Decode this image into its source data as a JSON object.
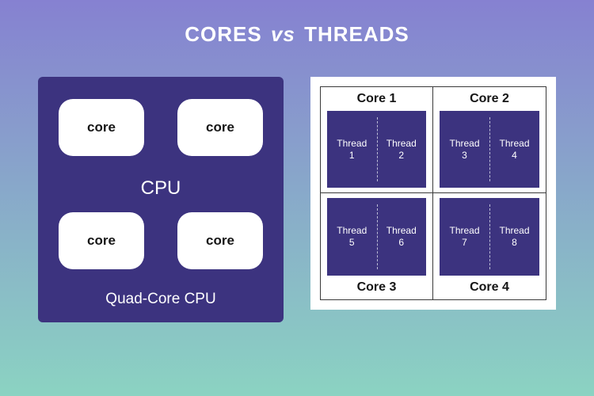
{
  "colors": {
    "bg_gradient_top": "#8681d1",
    "bg_gradient_bottom": "#8bd3c2",
    "cpu_panel_bg": "#3c337f",
    "thread_box_bg": "#3c337f",
    "white": "#ffffff",
    "text_dark": "#151515"
  },
  "title": {
    "left": "CORES",
    "vs": "vs",
    "right": "THREADS",
    "fontsize": 26
  },
  "cpu_panel": {
    "center_label": "CPU",
    "bottom_label": "Quad-Core CPU",
    "cores": [
      "core",
      "core",
      "core",
      "core"
    ]
  },
  "thread_panel": {
    "cells": [
      {
        "label": "Core 1",
        "pos": "top",
        "threads": [
          {
            "word": "Thread",
            "n": "1"
          },
          {
            "word": "Thread",
            "n": "2"
          }
        ]
      },
      {
        "label": "Core 2",
        "pos": "top",
        "threads": [
          {
            "word": "Thread",
            "n": "3"
          },
          {
            "word": "Thread",
            "n": "4"
          }
        ]
      },
      {
        "label": "Core 3",
        "pos": "bottom",
        "threads": [
          {
            "word": "Thread",
            "n": "5"
          },
          {
            "word": "Thread",
            "n": "6"
          }
        ]
      },
      {
        "label": "Core 4",
        "pos": "bottom",
        "threads": [
          {
            "word": "Thread",
            "n": "7"
          },
          {
            "word": "Thread",
            "n": "8"
          }
        ]
      }
    ]
  }
}
